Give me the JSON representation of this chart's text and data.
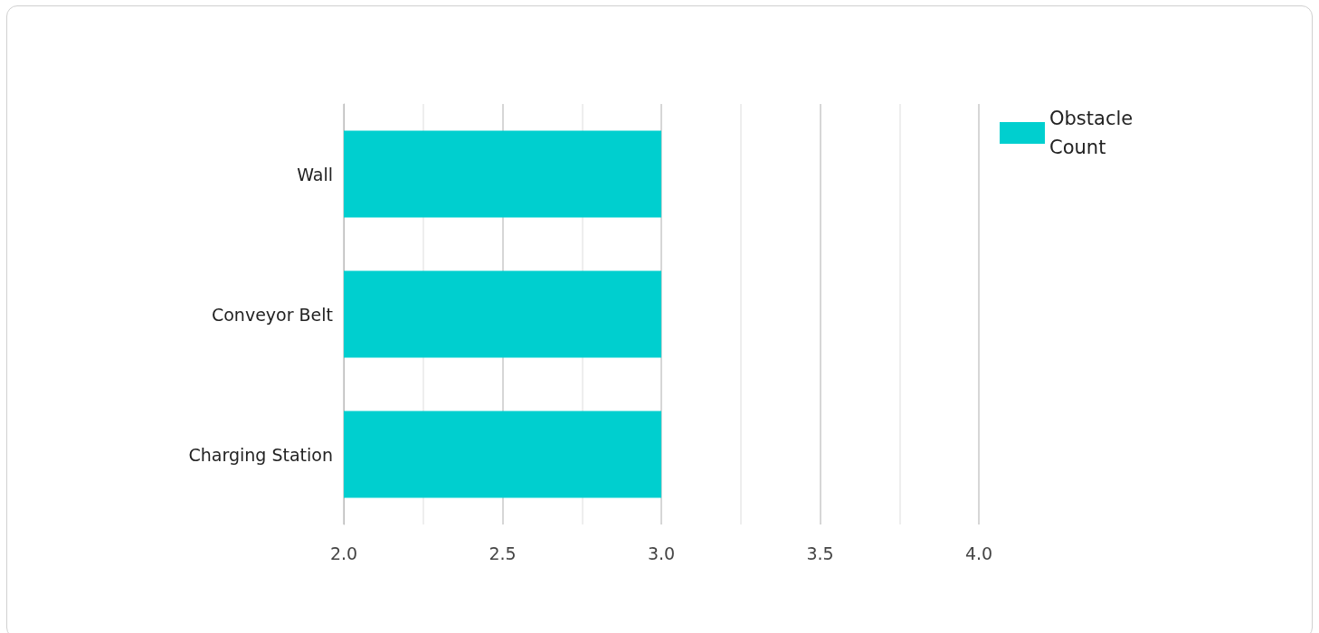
{
  "chart_data": {
    "type": "bar",
    "orientation": "horizontal",
    "categories": [
      "Wall",
      "Conveyor Belt",
      "Charging Station"
    ],
    "series": [
      {
        "name": "Obstacle Count",
        "color": "#00cfcf",
        "values": [
          3,
          3,
          3
        ]
      }
    ],
    "xlim": [
      2,
      4
    ],
    "xticks": [
      {
        "value": 2,
        "label": "2.0"
      },
      {
        "value": 2.25,
        "label": null
      },
      {
        "value": 2.5,
        "label": "2.5"
      },
      {
        "value": 2.75,
        "label": null
      },
      {
        "value": 3,
        "label": "3.0"
      },
      {
        "value": 3.25,
        "label": null
      },
      {
        "value": 3.5,
        "label": "3.5"
      },
      {
        "value": 3.75,
        "label": null
      },
      {
        "value": 4,
        "label": "4.0"
      }
    ],
    "grid": "x",
    "legend": "top right"
  }
}
